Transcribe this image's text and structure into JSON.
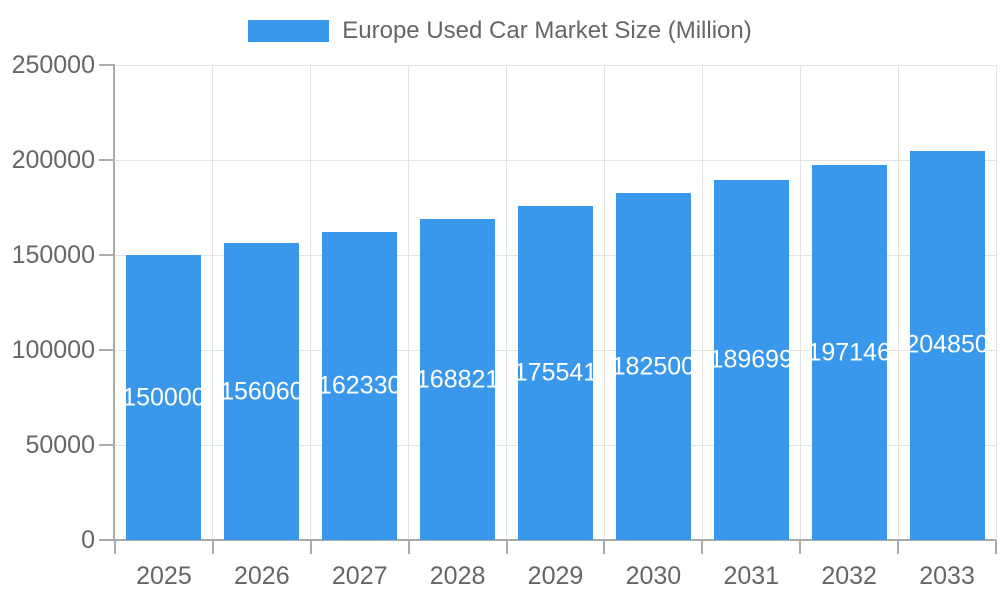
{
  "chart_data": {
    "type": "bar",
    "title": "Europe Used Car Market Size (Million)",
    "legend_position": "top",
    "categories": [
      "2025",
      "2026",
      "2027",
      "2028",
      "2029",
      "2030",
      "2031",
      "2032",
      "2033"
    ],
    "values": [
      150000,
      156060,
      162330,
      168821,
      175541,
      182500,
      189699,
      197146,
      204850
    ],
    "xlabel": "",
    "ylabel": "",
    "ylim": [
      0,
      250000
    ],
    "y_ticks": [
      0,
      50000,
      100000,
      150000,
      200000,
      250000
    ],
    "grid": true,
    "value_labels_position": "inside-center",
    "colors": {
      "bar": "#3A98EC",
      "grid": "#E3E3E3",
      "axis": "#ABABAB",
      "text": "#666666",
      "value_label": "#FFFFFF"
    }
  }
}
